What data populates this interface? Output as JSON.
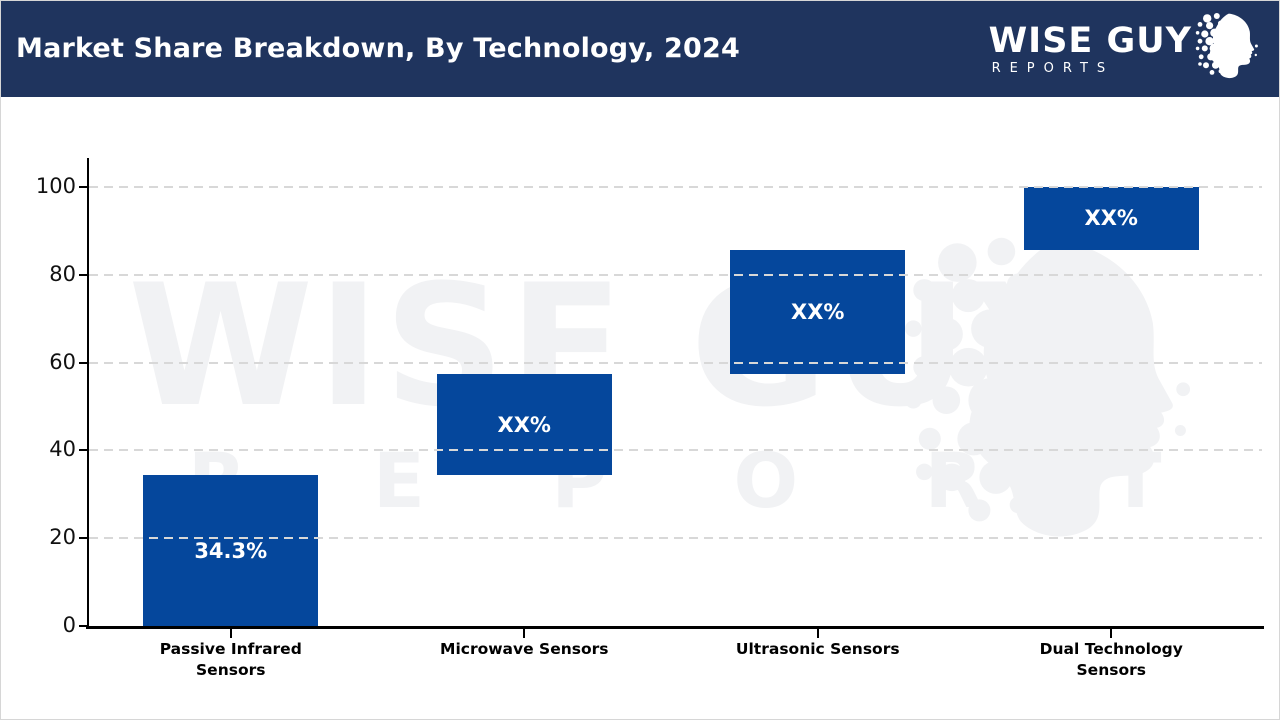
{
  "header": {
    "title": "Market Share Breakdown, By Technology, 2024",
    "logo": {
      "line1": "WISE GUY",
      "line2": "REPORTS"
    }
  },
  "watermark": {
    "line1": "WISE GUY",
    "line2": "R E P O R T S"
  },
  "chart_data": {
    "type": "bar",
    "subtype": "waterfall",
    "title": "Market Share Breakdown, By Technology, 2024",
    "categories": [
      "Passive Infrared Sensors",
      "Microwave Sensors",
      "Ultrasonic Sensors",
      "Dual Technology Sensors"
    ],
    "series": [
      {
        "name": "Market Share",
        "segments": [
          {
            "category": "Passive Infrared Sensors",
            "start": 0,
            "end": 34.3,
            "label": "34.3%"
          },
          {
            "category": "Microwave Sensors",
            "start": 34.3,
            "end": 57.4,
            "label": "XX%"
          },
          {
            "category": "Ultrasonic Sensors",
            "start": 57.4,
            "end": 85.7,
            "label": "XX%"
          },
          {
            "category": "Dual Technology Sensors",
            "start": 85.7,
            "end": 100,
            "label": "XX%"
          }
        ]
      }
    ],
    "ylim": [
      0,
      100
    ],
    "yticks": [
      0,
      20,
      40,
      60,
      80,
      100
    ],
    "xlabel": "",
    "ylabel": "",
    "grid": "horizontal-dashed",
    "legend": "none"
  },
  "colors": {
    "header_bg": "#1f345e",
    "bar": "#05479c",
    "grid": "#d8d8d8",
    "axis": "#000000",
    "watermark": "#f1f2f4",
    "bar_label": "#ffffff"
  }
}
